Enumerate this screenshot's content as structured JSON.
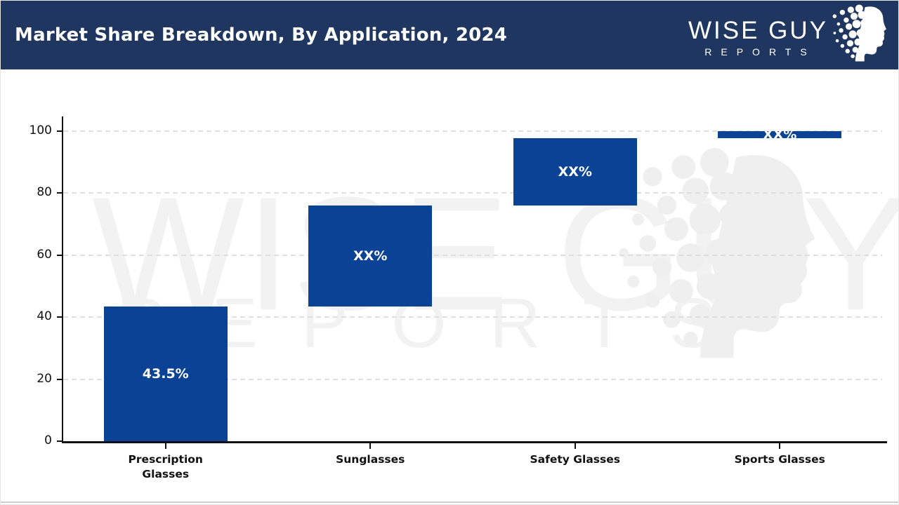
{
  "header": {
    "title": "Market Share Breakdown, By Application, 2024",
    "logo": {
      "name": "WISE GUY",
      "sub": "REPORTS"
    }
  },
  "watermark": {
    "line1": "WISE GUY",
    "line2": "REPORTS"
  },
  "chart_data": {
    "type": "bar",
    "variant": "waterfall",
    "title": "Market Share Breakdown, By Application, 2024",
    "categories": [
      "Prescription Glasses",
      "Sunglasses",
      "Safety Glasses",
      "Sports Glasses"
    ],
    "segments": [
      {
        "category": "Prescription Glasses",
        "start": 0,
        "end": 43.5,
        "label": "43.5%"
      },
      {
        "category": "Sunglasses",
        "start": 43.5,
        "end": 76,
        "label": "XX%"
      },
      {
        "category": "Safety Glasses",
        "start": 76,
        "end": 97.7,
        "label": "XX%"
      },
      {
        "category": "Sports Glasses",
        "start": 97.7,
        "end": 100,
        "label": "XX%"
      }
    ],
    "yticks": [
      0,
      20,
      40,
      60,
      80,
      100
    ],
    "ylim": [
      0,
      104.5
    ],
    "xlabel": "",
    "ylabel": "",
    "grid": "horizontal-dashed",
    "legend": "none",
    "bar_color": "#0a4296",
    "bar_label_color": "#ffffff",
    "axis_color": "#111111",
    "grid_color": "#dedede"
  },
  "colors": {
    "header_bg": "#1f3661",
    "page_bg": "#ffffff",
    "watermark": "#f2f2f2"
  }
}
